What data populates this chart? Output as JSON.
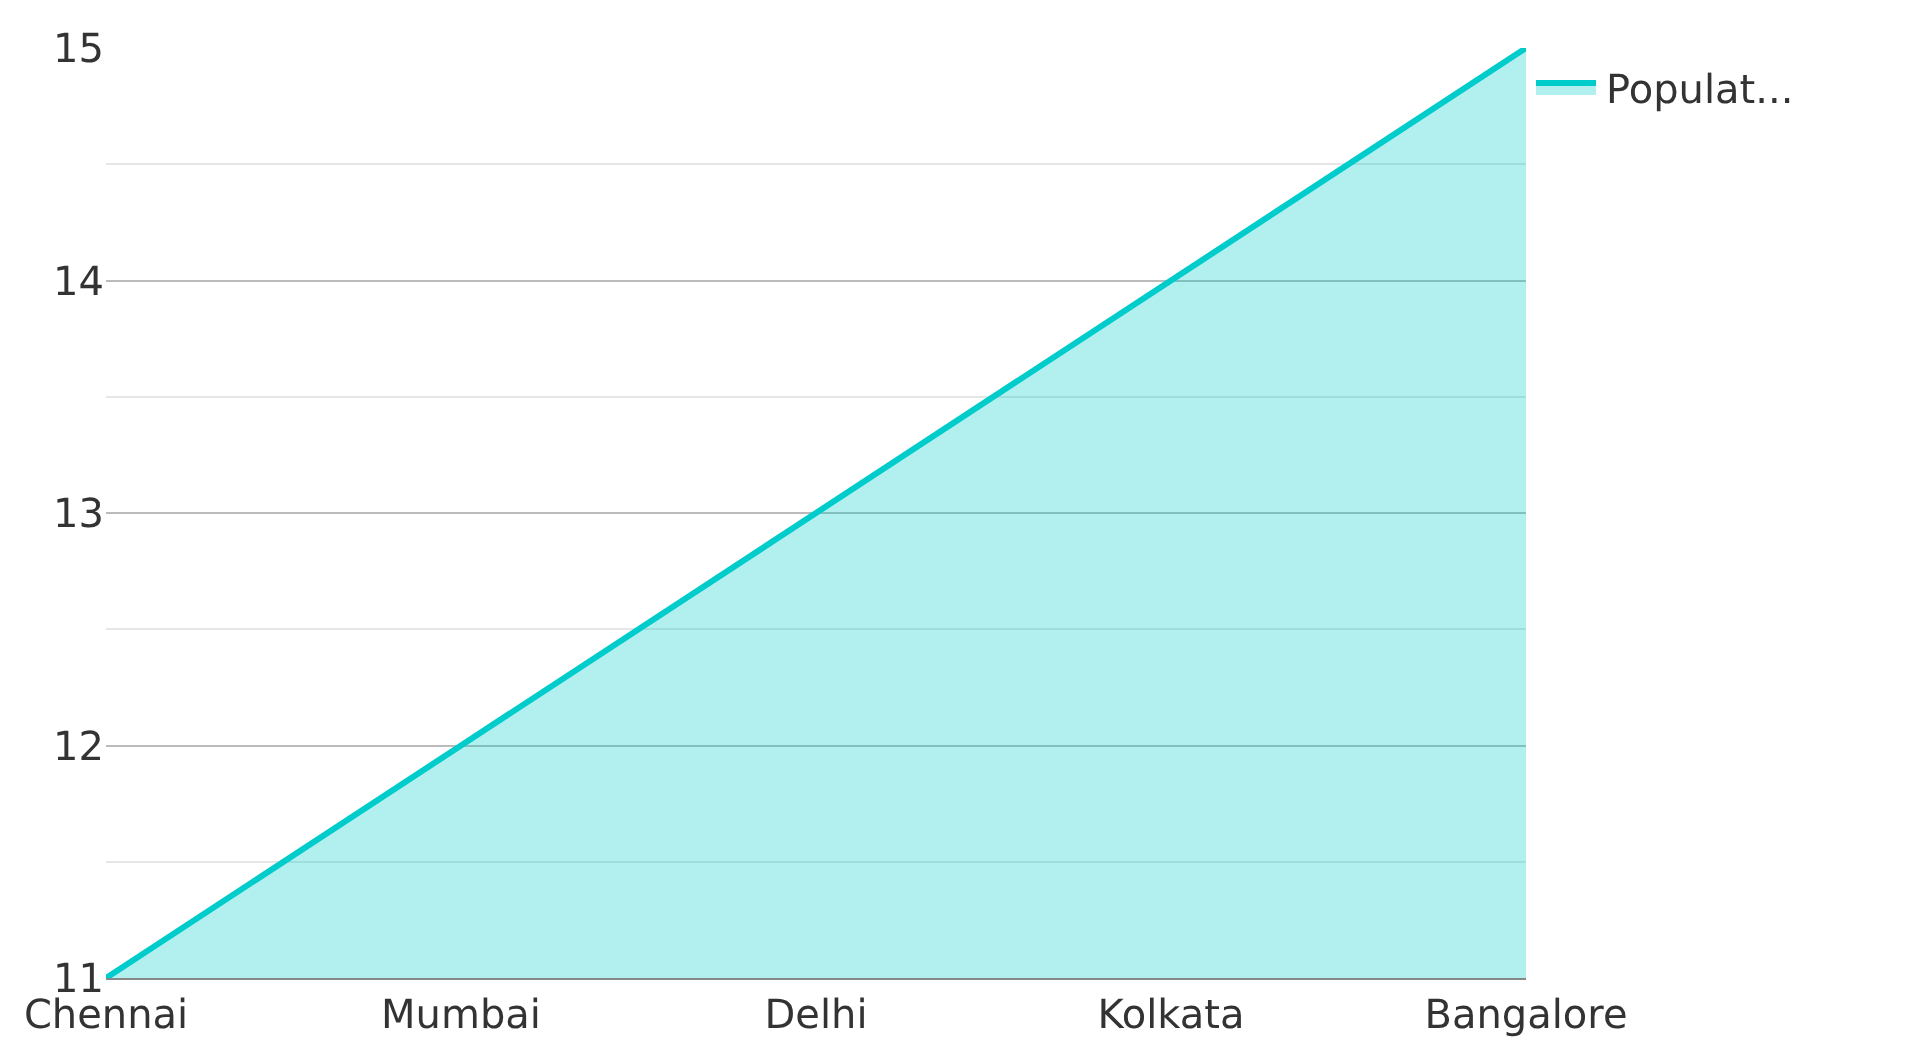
{
  "chart_data": {
    "type": "area",
    "categories": [
      "Chennai",
      "Mumbai",
      "Delhi",
      "Kolkata",
      "Bangalore"
    ],
    "series": [
      {
        "name": "Populat...",
        "color": "#00cccc",
        "values": [
          11,
          12,
          13,
          14,
          15
        ]
      }
    ],
    "ylim": [
      11,
      15
    ],
    "yticks": [
      11,
      12,
      13,
      14,
      15
    ],
    "grid": "y",
    "legend": "top right",
    "marker": "none",
    "line_style": "solid"
  }
}
